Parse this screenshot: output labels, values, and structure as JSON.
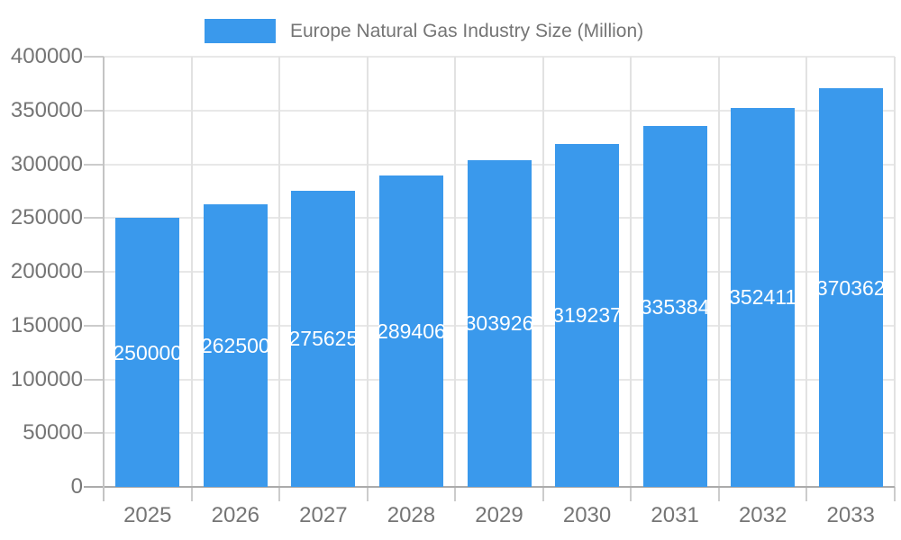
{
  "legend": {
    "label": "Europe Natural Gas Industry Size (Million)"
  },
  "chart_data": {
    "type": "bar",
    "title": "Europe Natural Gas Industry Size (Million)",
    "categories": [
      "2025",
      "2026",
      "2027",
      "2028",
      "2029",
      "2030",
      "2031",
      "2032",
      "2033"
    ],
    "values": [
      250000,
      262500,
      275625,
      289406,
      303926,
      319237,
      335384,
      352411,
      370362
    ],
    "bar_value_labels": [
      "250000",
      "262500",
      "275625",
      "289406",
      "303926",
      "319237",
      "335384",
      "352411",
      "370362"
    ],
    "y_ticks": [
      0,
      50000,
      100000,
      150000,
      200000,
      250000,
      300000,
      350000,
      400000
    ],
    "y_tick_labels": [
      "0",
      "50000",
      "100000",
      "150000",
      "200000",
      "250000",
      "300000",
      "350000",
      "400000"
    ],
    "ylim": [
      0,
      400000
    ],
    "xlabel": "",
    "ylabel": "",
    "legend_position": "top",
    "grid": true,
    "colors": {
      "bar": "#3A99EC",
      "axis_text": "#757575",
      "value_label_text": "#FFFFFF"
    }
  }
}
